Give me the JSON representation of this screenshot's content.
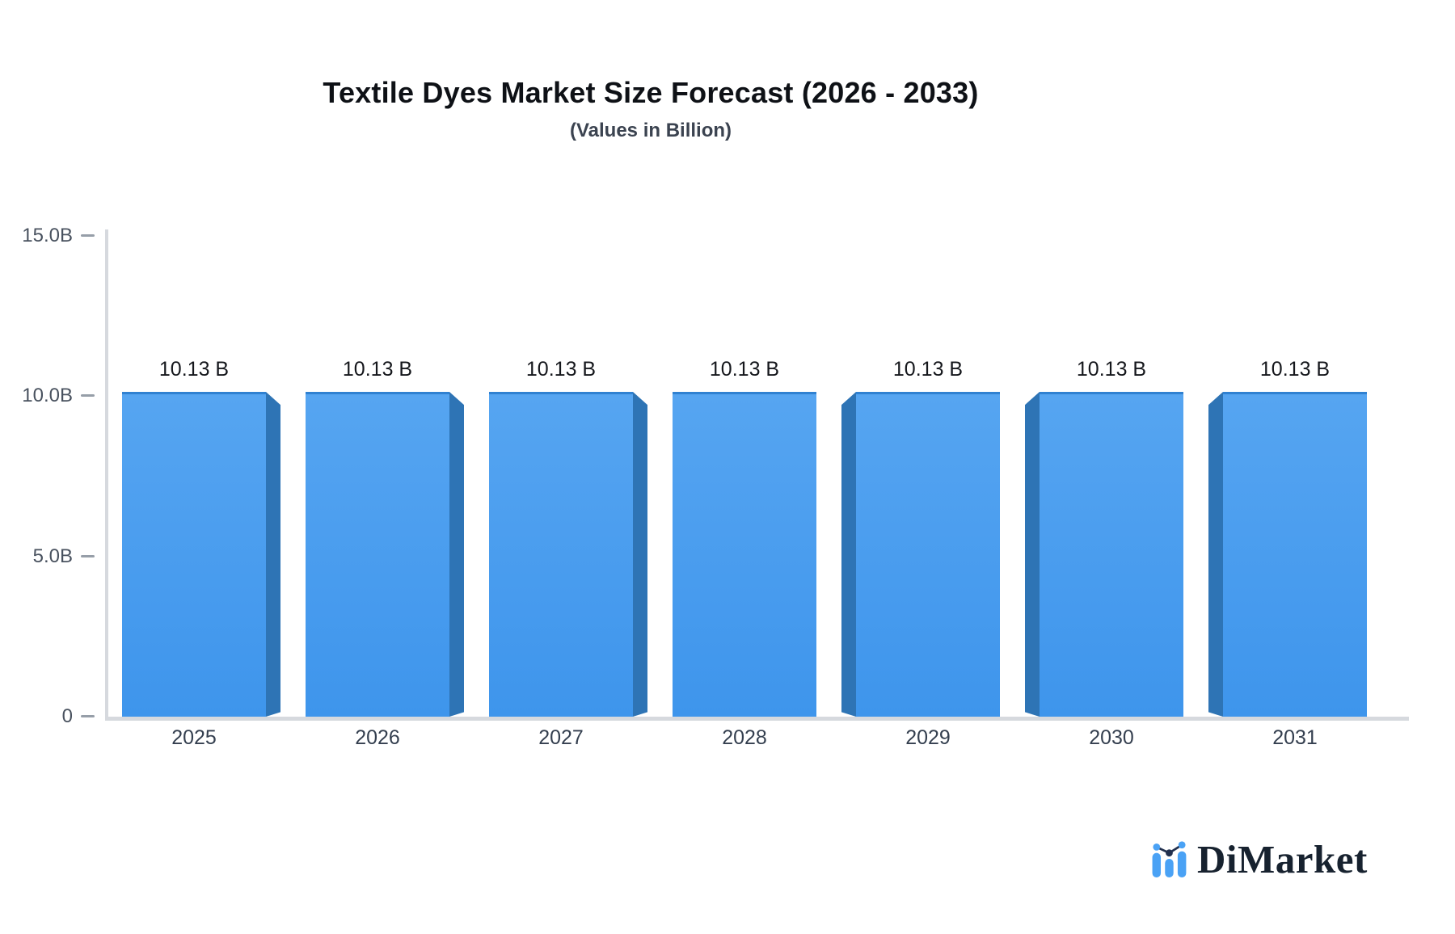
{
  "header": {
    "title": "Textile Dyes Market Size Forecast (2026 - 2033)",
    "subtitle": "(Values in Billion)"
  },
  "chart_data": {
    "type": "bar",
    "title": "Textile Dyes Market Size Forecast (2026 - 2033)",
    "subtitle": "(Values in Billion)",
    "categories": [
      "2025",
      "2026",
      "2027",
      "2028",
      "2029",
      "2030",
      "2031"
    ],
    "values": [
      10.13,
      10.13,
      10.13,
      10.13,
      10.13,
      10.13,
      10.13
    ],
    "value_labels": [
      "10.13 B",
      "10.13 B",
      "10.13 B",
      "10.13 B",
      "10.13 B",
      "10.13 B",
      "10.13 B"
    ],
    "xlabel": "",
    "ylabel": "",
    "ylim": [
      0,
      15
    ],
    "yticks": [
      {
        "value": 0,
        "label": "0"
      },
      {
        "value": 5,
        "label": "5.0B"
      },
      {
        "value": 10,
        "label": "10.0B"
      },
      {
        "value": 15,
        "label": "15.0B"
      }
    ],
    "grid": false,
    "legend": false,
    "bar_style": "3d-extruded",
    "colors": {
      "bar_face_top": "#56a5f1",
      "bar_face_bottom": "#3e95ec",
      "bar_side": "#2e74b5",
      "axis_line": "#d6d9de",
      "tick_dash": "#969ea8",
      "tick_label": "#49525f",
      "value_label": "#15171c",
      "category_label": "#343f4f"
    }
  },
  "branding": {
    "name": "DiMarket",
    "icon": "bar-chart-trend-icon",
    "icon_blue": "#4aa2f5",
    "icon_navy": "#22304e",
    "text_color": "#17222f"
  }
}
